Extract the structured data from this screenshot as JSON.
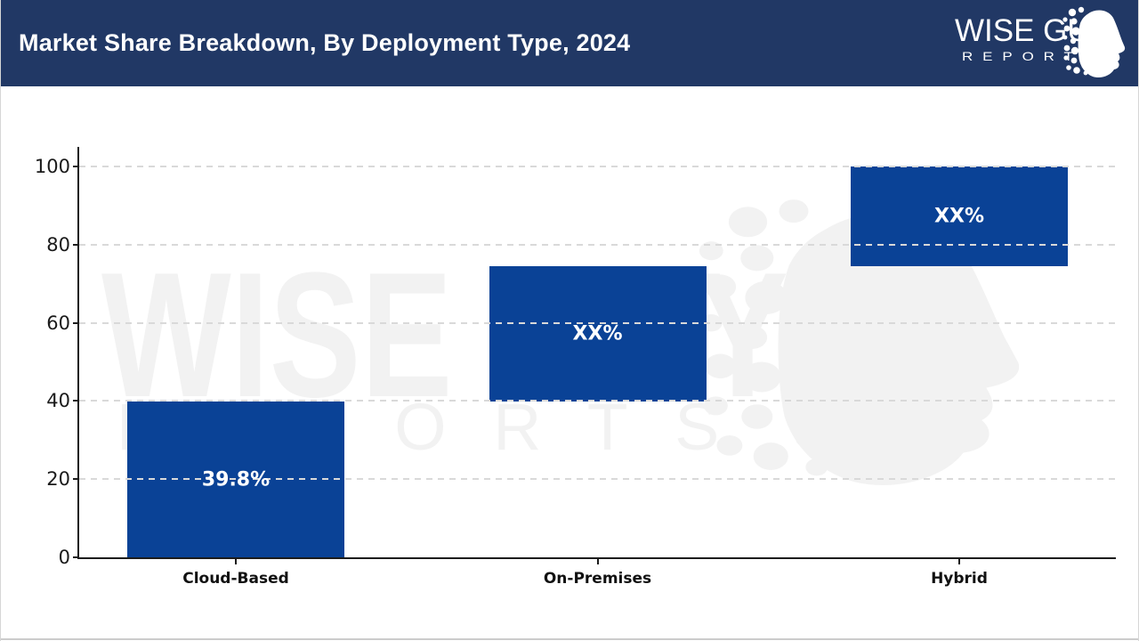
{
  "header": {
    "title": "Market Share Breakdown, By Deployment Type, 2024",
    "bg_color": "#213865",
    "logo": {
      "line1": "WISE GUY",
      "line2": "REPORTS"
    }
  },
  "watermark": {
    "line1": "WISE GUY",
    "line2": "REPORTS"
  },
  "chart_data": {
    "type": "bar",
    "subtype": "waterfall-floating-bars",
    "title": "Market Share Breakdown, By Deployment Type, 2024",
    "categories": [
      "Cloud-Based",
      "On-Premises",
      "Hybrid"
    ],
    "bars": [
      {
        "category": "Cloud-Based",
        "start": 0,
        "end": 39.8,
        "label": "39.8%"
      },
      {
        "category": "On-Premises",
        "start": 39.8,
        "end": 74.6,
        "label": "XX%"
      },
      {
        "category": "Hybrid",
        "start": 74.6,
        "end": 100,
        "label": "XX%"
      }
    ],
    "yticks": [
      0,
      20,
      40,
      60,
      80,
      100
    ],
    "ylim": [
      0,
      105
    ],
    "xlabel": "",
    "ylabel": "",
    "grid": "horizontal dashed lines drawn above bars",
    "legend": "none",
    "bar_color": "#0a4296",
    "bar_label_color": "#ffffff",
    "gridline_color": "#d9d9d9",
    "axis_color": "#1c1c1c"
  }
}
